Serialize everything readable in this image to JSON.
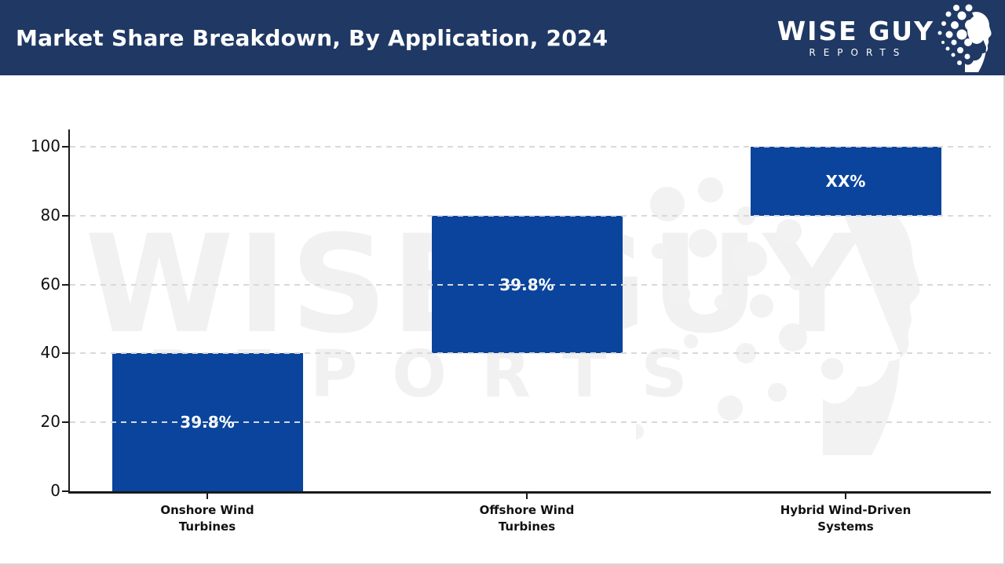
{
  "header": {
    "title": "Market Share Breakdown, By Application, 2024",
    "logo": {
      "line1": "WISE GUY",
      "line2": "REPORTS"
    }
  },
  "watermark": {
    "line1": "WISE GUY",
    "line2": "REPORTS"
  },
  "chart_data": {
    "type": "bar",
    "variant": "floating-segment-bars",
    "title": "Market Share Breakdown, By Application, 2024",
    "categories": [
      "Onshore Wind\nTurbines",
      "Offshore Wind\nTurbines",
      "Hybrid Wind-Driven\nSystems"
    ],
    "bars": [
      {
        "category": "Onshore Wind Turbines",
        "start": 0,
        "end": 40,
        "label": "39.8%"
      },
      {
        "category": "Offshore Wind Turbines",
        "start": 40,
        "end": 80,
        "label": "39.8%"
      },
      {
        "category": "Hybrid Wind-Driven Systems",
        "start": 80,
        "end": 100,
        "label": "XX%"
      }
    ],
    "y_ticks": [
      0,
      20,
      40,
      60,
      80,
      100
    ],
    "ylim": [
      0,
      105
    ],
    "xlabel": "",
    "ylabel": "",
    "grid": "horizontal-dashed",
    "legend": null,
    "bar_color": "#0a449c",
    "bar_label_color": "#ffffff",
    "grid_color": "#d9d9d9",
    "header_color": "#1f3864"
  }
}
